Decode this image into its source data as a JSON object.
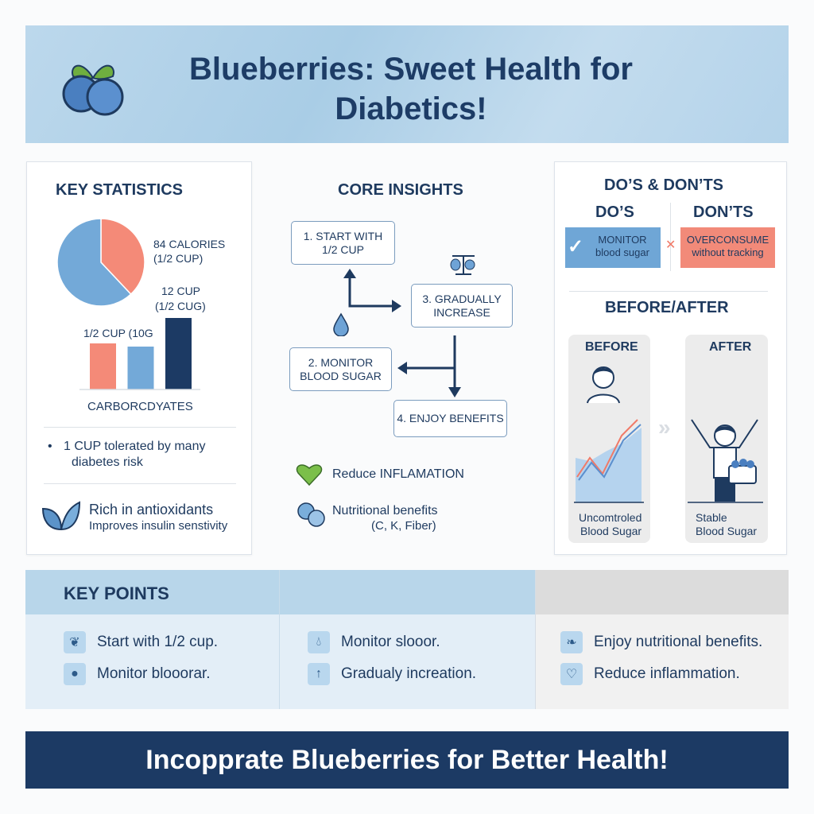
{
  "header": {
    "title": "Blueberries: Sweet Health for Diabetics!",
    "logo": "blueberries-logo"
  },
  "key_statistics": {
    "heading": "KEY STATISTICS",
    "pie": {
      "slices": [
        {
          "fraction": 0.38,
          "color": "#f48a78"
        },
        {
          "fraction": 0.62,
          "color": "#73a9d8"
        }
      ]
    },
    "pie_label_1": "84 CALORIES",
    "pie_label_2": "(1/2 CUP)",
    "bar_label_top_1": "12 CUP",
    "bar_label_top_2": "(1/2 CUG)",
    "bar_label_left": "1/2 CUP (10G",
    "bars": [
      {
        "value": 58,
        "color": "#f48a78"
      },
      {
        "value": 54,
        "color": "#73a9d8"
      },
      {
        "value": 90,
        "color": "#1c3a64"
      }
    ],
    "bar_axis_label": "CARBORCDYATES",
    "bullet_line_1": "1 CUP tolerated by many",
    "bullet_line_2": "diabetes risk",
    "antioxidant_title": "Rich in antioxidants",
    "antioxidant_sub": "Improves insulin senstivity"
  },
  "core_insights": {
    "heading": "CORE INSIGHTS",
    "step1": [
      "1. START WITH",
      "1/2 CUP"
    ],
    "step2": [
      "2. MONITOR",
      "BLOOD SUGAR"
    ],
    "step3": [
      "3. GRADUALLY",
      "INCREASE"
    ],
    "step4": "4. ENJOY BENEFITS",
    "benefit1": "Reduce INFLAMATION",
    "benefit2_line1": "Nutritional benefits",
    "benefit2_line2": "(C, K, Fiber)"
  },
  "dos_donts": {
    "heading": "DO’S & DON’TS",
    "dos_label": "DO’S",
    "donts_label": "DON’TS",
    "do_line1": "MONITOR",
    "do_line2": "blood sugar",
    "dont_line1": "OVERCONSUME",
    "dont_line2": "without tracking",
    "before_after_heading": "BEFORE/AFTER",
    "before_label": "BEFORE",
    "after_label": "AFTER",
    "before_caption1": "Uncomtroled",
    "before_caption2": "Blood Sugar",
    "after_caption1": "Stable",
    "after_caption2": "Blood Sugar"
  },
  "key_points": {
    "heading": "KEY POINTS",
    "items": [
      {
        "icon": "blueberries-icon",
        "text": "Start with 1/2 cup."
      },
      {
        "icon": "blueberry-icon",
        "text": "Monitor blooorar."
      },
      {
        "icon": "drop-icon",
        "text": "Monitor slooor."
      },
      {
        "icon": "arrow-up-icon",
        "text": "Gradualy increation."
      },
      {
        "icon": "leaf-icon",
        "text": "Enjoy nutritional benefits."
      },
      {
        "icon": "heart-icon",
        "text": "Reduce inflammation."
      }
    ]
  },
  "footer": {
    "text": "Incopprate Blueberries for Better Health!"
  },
  "colors": {
    "navy": "#1c3a64",
    "blue": "#73a9d8",
    "coral": "#f48a78",
    "light_blue": "#b8d6ea"
  }
}
